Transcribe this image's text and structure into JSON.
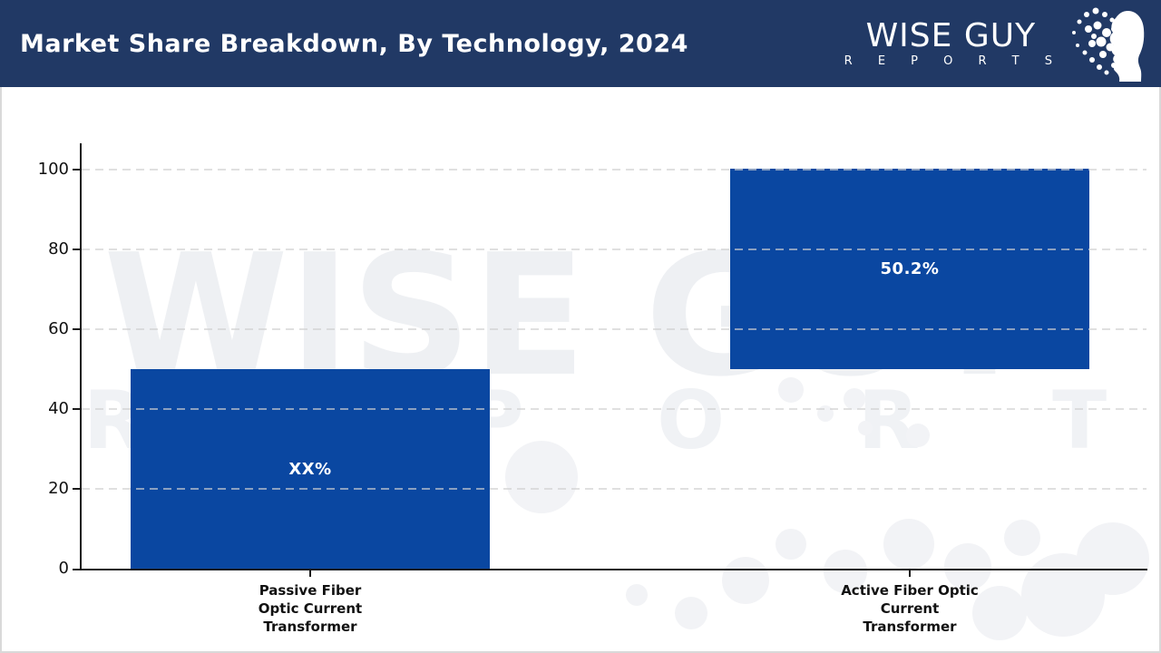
{
  "header": {
    "title": "Market Share Breakdown, By Technology, 2024",
    "logo": {
      "name": "WISE GUY",
      "sub": "R E P O R T S"
    }
  },
  "watermark": {
    "big": "WISE GUY",
    "sub": "R E P O R T S"
  },
  "chart_data": {
    "type": "bar",
    "style": "floating-segment-breakdown",
    "title": "Market Share Breakdown, By Technology, 2024",
    "categories": [
      "Passive Fiber Optic Current Transformer",
      "Active Fiber Optic Current Transformer"
    ],
    "category_lines": [
      [
        "Passive Fiber",
        "Optic Current",
        "Transformer"
      ],
      [
        "Active Fiber Optic",
        "Current",
        "Transformer"
      ]
    ],
    "bars": [
      {
        "category": "Passive Fiber Optic Current Transformer",
        "start": 0,
        "end": 49.8,
        "label": "XX%"
      },
      {
        "category": "Active Fiber Optic Current Transformer",
        "start": 49.8,
        "end": 100,
        "label": "50.2%"
      }
    ],
    "ylim": [
      0,
      100
    ],
    "yticks": [
      0,
      20,
      40,
      60,
      80,
      100
    ],
    "ytick_labels": [
      "0",
      "20",
      "40",
      "60",
      "80",
      "100"
    ],
    "xlabel": "",
    "ylabel": "",
    "grid": "horizontal-dashed",
    "legend": "none",
    "bar_color": "#0a47a1",
    "header_color": "#213965"
  }
}
